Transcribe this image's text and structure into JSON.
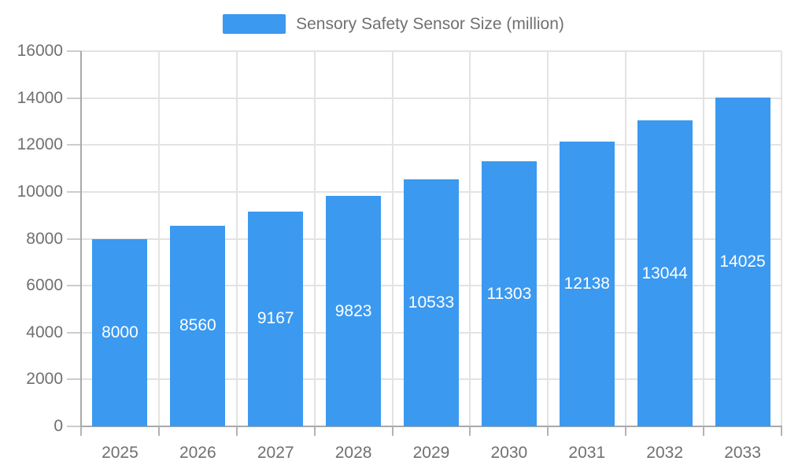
{
  "chart": {
    "background": "#ffffff",
    "bar_color": "#3b99f0",
    "bar_label_color": "#ffffff",
    "axis_text_color": "#707070",
    "grid_color": "#e3e3e3",
    "axis_line_color": "#a9a9a9",
    "y_tick_color": "#cccccc",
    "x_tick_color": "#b3b3b3"
  },
  "legend": {
    "label": "Sensory Safety Sensor Size (million)"
  },
  "chart_data": {
    "type": "bar",
    "title": "Sensory Safety Sensor Size (million)",
    "series_name": "Sensory Safety Sensor Size (million)",
    "categories": [
      "2025",
      "2026",
      "2027",
      "2028",
      "2029",
      "2030",
      "2031",
      "2032",
      "2033"
    ],
    "values": [
      8000,
      8560,
      9167,
      9823,
      10533,
      11303,
      12138,
      13044,
      14025
    ],
    "xlabel": "",
    "ylabel": "",
    "ylim": [
      0,
      16000
    ],
    "ytick_step": 2000,
    "ytick_labels": [
      "0",
      "2000",
      "4000",
      "6000",
      "8000",
      "10000",
      "12000",
      "14000",
      "16000"
    ],
    "grid": true,
    "legend_position": "top",
    "value_labels": "inside-center"
  }
}
